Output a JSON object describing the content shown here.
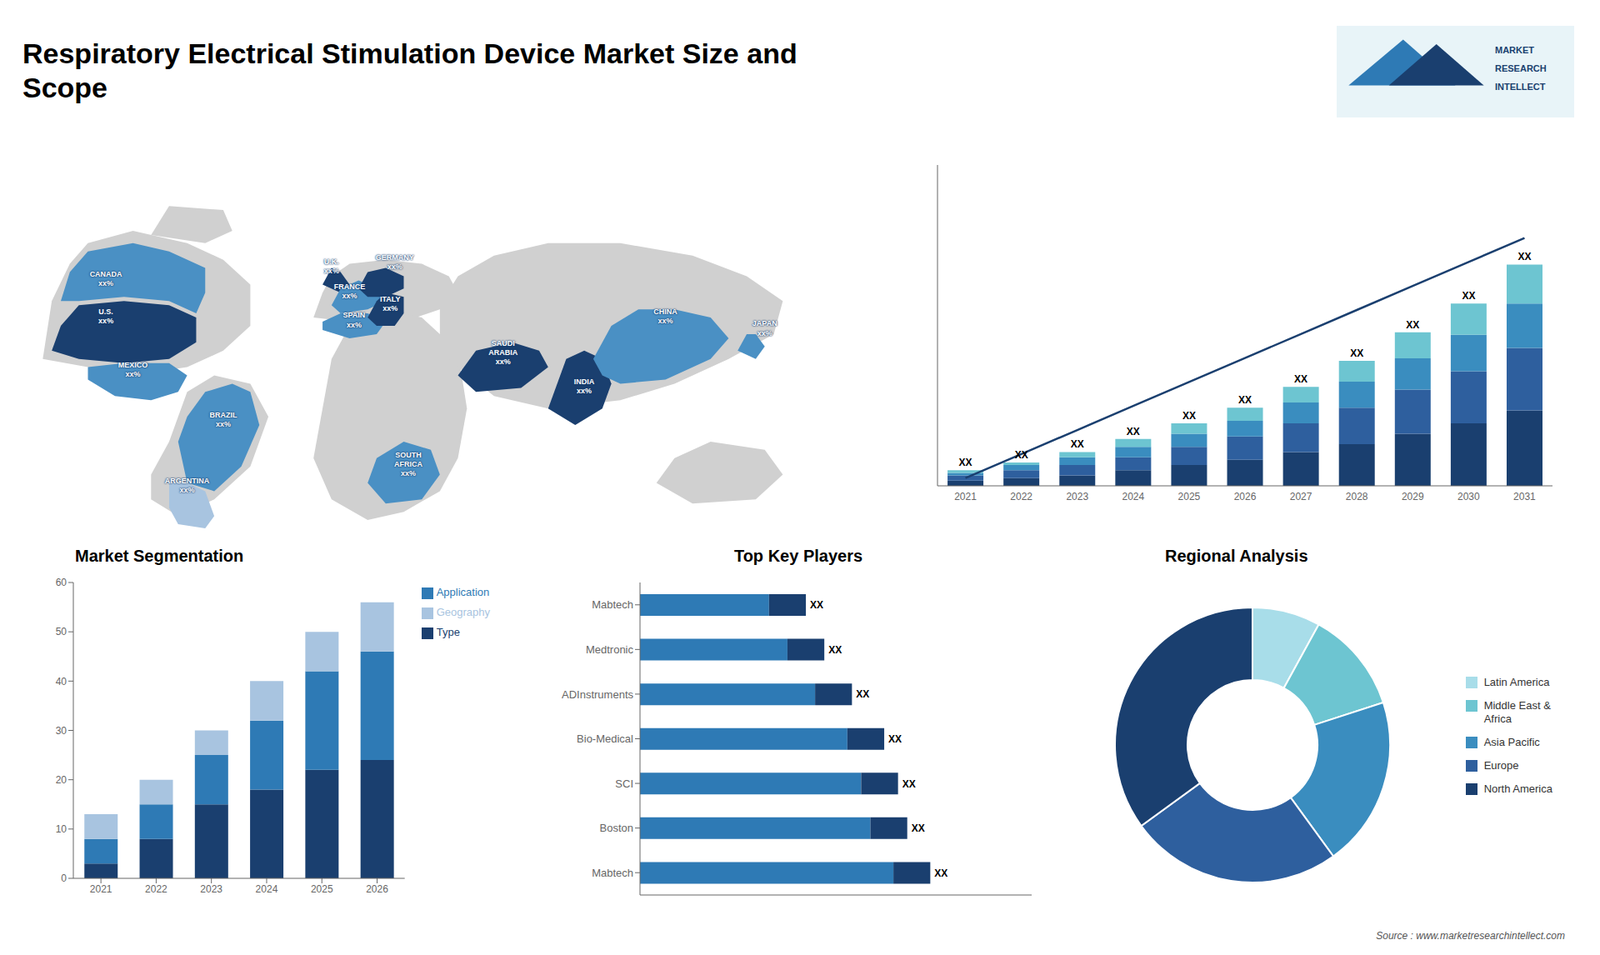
{
  "title": "Respiratory Electrical Stimulation Device Market Size and\nScope",
  "annotations": [
    "MARKET",
    "RESEARCH",
    "INTELLECT",
    "Source : www.marketresearchintellect.com"
  ],
  "chart_data": [
    {
      "type": "map",
      "annotations": [
        "CANADA\nxx%",
        "U.S.\nxx%",
        "MEXICO\nxx%",
        "BRAZIL\nxx%",
        "ARGENTINA\nxx%",
        "U.K.\nxx%",
        "FRANCE\nxx%",
        "SPAIN\nxx%",
        "GERMANY\nxx%",
        "ITALY\nxx%",
        "SAUDI\nARABIA\nxx%",
        "INDIA\nxx%",
        "CHINA\nxx%",
        "JAPAN\nxx%",
        "SOUTH\nAFRICA\nxx%"
      ]
    },
    {
      "type": "bar",
      "stacked": true,
      "categories": [
        "2021",
        "2022",
        "2023",
        "2024",
        "2025",
        "2026",
        "2027",
        "2028",
        "2029",
        "2030",
        "2031"
      ],
      "series": [
        {
          "color": "#1a3f6f",
          "values": [
            2,
            3,
            4,
            6,
            8,
            10,
            13,
            16,
            20,
            24,
            29
          ]
        },
        {
          "color": "#2e5f9e",
          "values": [
            2,
            3,
            4,
            5,
            7,
            9,
            11,
            14,
            17,
            20,
            24
          ]
        },
        {
          "color": "#3a8dbf",
          "values": [
            1,
            2,
            3,
            4,
            5,
            6,
            8,
            10,
            12,
            14,
            17
          ]
        },
        {
          "color": "#6dc5d1",
          "values": [
            1,
            1,
            2,
            3,
            4,
            5,
            6,
            8,
            10,
            12,
            15
          ]
        },
        {
          "type": "line",
          "color": "#1a3f6f",
          "values": [
            3,
            12.22,
            21.44,
            30.66,
            39.88,
            49.1,
            58.32,
            67.54,
            76.76,
            85.98,
            95.2
          ]
        }
      ],
      "annotations": [
        "XX",
        "XX",
        "XX",
        "XX",
        "XX",
        "XX",
        "XX",
        "XX",
        "XX",
        "XX",
        "XX"
      ],
      "ylim": [
        0,
        123.25
      ],
      "tick_labels": "x",
      "grid": false
    },
    {
      "type": "bar",
      "title": "Market Segmentation",
      "stacked": true,
      "categories": [
        "2021",
        "2022",
        "2023",
        "2024",
        "2025",
        "2026"
      ],
      "series": [
        {
          "name": "Type",
          "color": "#1a3f6f",
          "values": [
            3,
            8,
            15,
            18,
            22,
            24
          ]
        },
        {
          "name": "Application",
          "color": "#2e7ab5",
          "values": [
            5,
            7,
            10,
            14,
            20,
            22
          ]
        },
        {
          "name": "Geography",
          "color": "#a8c4e0",
          "values": [
            5,
            5,
            5,
            8,
            8,
            10
          ]
        }
      ],
      "ylim": [
        0,
        60
      ],
      "yticks": [
        0,
        10,
        20,
        30,
        40,
        50,
        60
      ],
      "legend": "upper right",
      "grid": false
    },
    {
      "type": "bar",
      "title": "Top Key Players",
      "orientation": "horizontal",
      "stacked": true,
      "categories": [
        "Mabtech",
        "Boston",
        "SCI",
        "Bio-Medical",
        "ADInstruments",
        "Medtronic",
        "Mabtech"
      ],
      "series": [
        {
          "color": "#2e7ab5",
          "values": [
            55,
            50,
            48,
            45,
            38,
            32,
            28
          ]
        },
        {
          "color": "#1a3f6f",
          "values": [
            8,
            8,
            8,
            8,
            8,
            8,
            8
          ]
        }
      ],
      "annotations": [
        "XX",
        "XX",
        "XX",
        "XX",
        "XX",
        "XX",
        "XX"
      ],
      "xlim": [
        0,
        85
      ],
      "tick_labels": "y",
      "grid": false
    },
    {
      "type": "pie",
      "title": "Regional Analysis",
      "categories": [
        "Latin America",
        "Middle East &\nAfrica",
        "Asia Pacific",
        "Europe",
        "North America"
      ],
      "values": [
        8,
        12,
        20,
        25,
        35
      ],
      "colors": [
        "#a8dde9",
        "#6dc5d1",
        "#3a8dbf",
        "#2e5f9e",
        "#1a3f6f"
      ],
      "legend": "right"
    }
  ]
}
